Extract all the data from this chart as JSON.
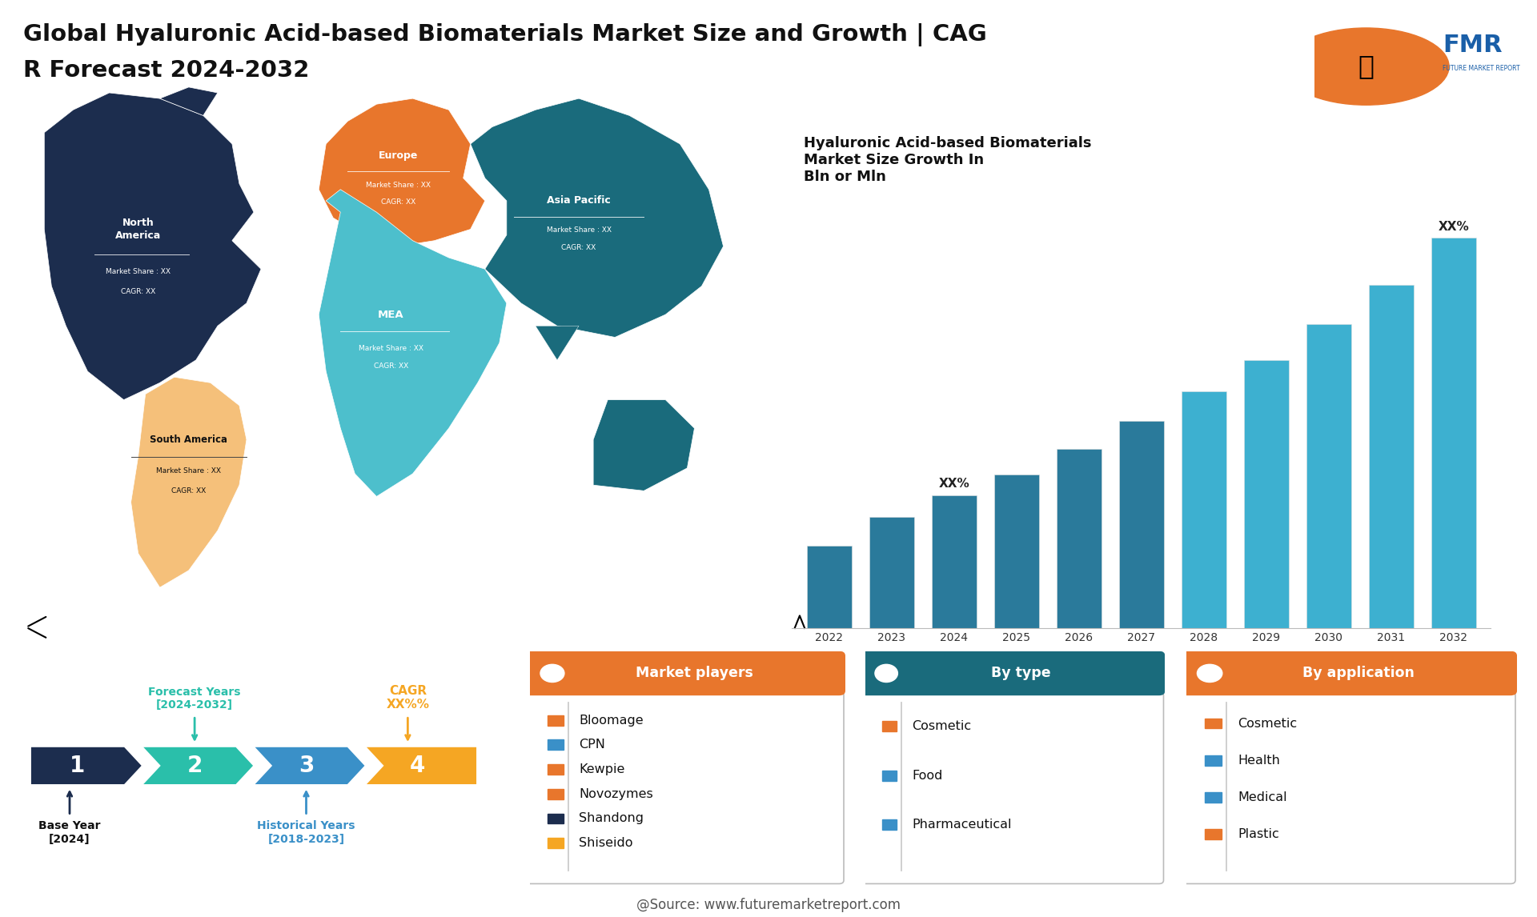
{
  "title_line1": "Global Hyaluronic Acid-based Biomaterials Market Size and Growth | CAG",
  "title_line2": "R Forecast 2024-2032",
  "title_fontsize": 21,
  "background_color": "#ffffff",
  "bar_chart": {
    "title": "Hyaluronic Acid-based Biomaterials\nMarket Size Growth In\nBln or Mln",
    "years": [
      "2022",
      "2023",
      "2024",
      "2025",
      "2026",
      "2027",
      "2028",
      "2029",
      "2030",
      "2031",
      "2032"
    ],
    "values": [
      1.0,
      1.35,
      1.62,
      1.87,
      2.18,
      2.52,
      2.88,
      3.26,
      3.7,
      4.18,
      4.75
    ],
    "bar_color_dark": "#2a7a9b",
    "bar_color_light": "#3db0d0",
    "dark_bars": [
      0,
      1,
      2,
      3,
      4,
      5
    ],
    "annotations": [
      {
        "bar_idx": 2,
        "text": "XX%"
      },
      {
        "bar_idx": 10,
        "text": "XX%"
      }
    ]
  },
  "regions": {
    "north_america": {
      "color": "#1c2d4e",
      "label": "North America",
      "label_color": "white",
      "sub": "Market Share : XX\nCAGR: XX",
      "sub_color": "white"
    },
    "south_america": {
      "color": "#f5c07a",
      "label": "South America",
      "label_color": "#111111",
      "sub": "Market Share : XX\nCAGR: XX",
      "sub_color": "#111111"
    },
    "europe": {
      "color": "#e8762c",
      "label": "Europe",
      "label_color": "white",
      "sub": "Market Share : XX\nCAGR: XX",
      "sub_color": "white"
    },
    "mea": {
      "color": "#4dbfcc",
      "label": "MEA",
      "label_color": "white",
      "sub": "Market Share : XX\nCAGR: XX",
      "sub_color": "white"
    },
    "asia_pacific": {
      "color": "#1a6b7c",
      "label": "Asia Pacific",
      "label_color": "white",
      "sub": "Market Share : XX\nCAGR: XX",
      "sub_color": "white"
    }
  },
  "timeline": {
    "segments": [
      {
        "num": "1",
        "color": "#1c2d4e"
      },
      {
        "num": "2",
        "color": "#2abfaa"
      },
      {
        "num": "3",
        "color": "#3a90c8"
      },
      {
        "num": "4",
        "color": "#f5a623"
      }
    ],
    "base_year_label": "Base Year\n[2024]",
    "base_year_color": "#111111",
    "base_arrow_color": "#1c2d4e",
    "forecast_label": "Forecast Years\n[2024-2032]",
    "forecast_color": "#2abfaa",
    "historical_label": "Historical Years\n[2018-2023]",
    "historical_color": "#3a90c8",
    "cagr_label": "CAGR\nXX%%",
    "cagr_color": "#f5a623"
  },
  "market_players": {
    "header": "Market players",
    "header_color": "#e8762c",
    "items": [
      "Bloomage",
      "CPN",
      "Kewpie",
      "Novozymes",
      "Shandong",
      "Shiseido"
    ],
    "bullet_colors": [
      "#e8762c",
      "#3a90c8",
      "#e8762c",
      "#e8762c",
      "#1c2d4e",
      "#f5a623"
    ]
  },
  "by_type": {
    "header": "By type",
    "header_color": "#1a6b7c",
    "items": [
      "Cosmetic",
      "Food",
      "Pharmaceutical"
    ],
    "bullet_colors": [
      "#e8762c",
      "#3a90c8",
      "#3a90c8"
    ]
  },
  "by_application": {
    "header": "By application",
    "header_color": "#e8762c",
    "items": [
      "Cosmetic",
      "Health",
      "Medical",
      "Plastic"
    ],
    "bullet_colors": [
      "#e8762c",
      "#3a90c8",
      "#3a90c8",
      "#e8762c"
    ]
  },
  "source_text": "@Source: www.futuremarketreport.com",
  "fmr_text": "FMR",
  "fmr_sub": "FUTURE MARKET REPORT",
  "fmr_color": "#1a5fa8"
}
